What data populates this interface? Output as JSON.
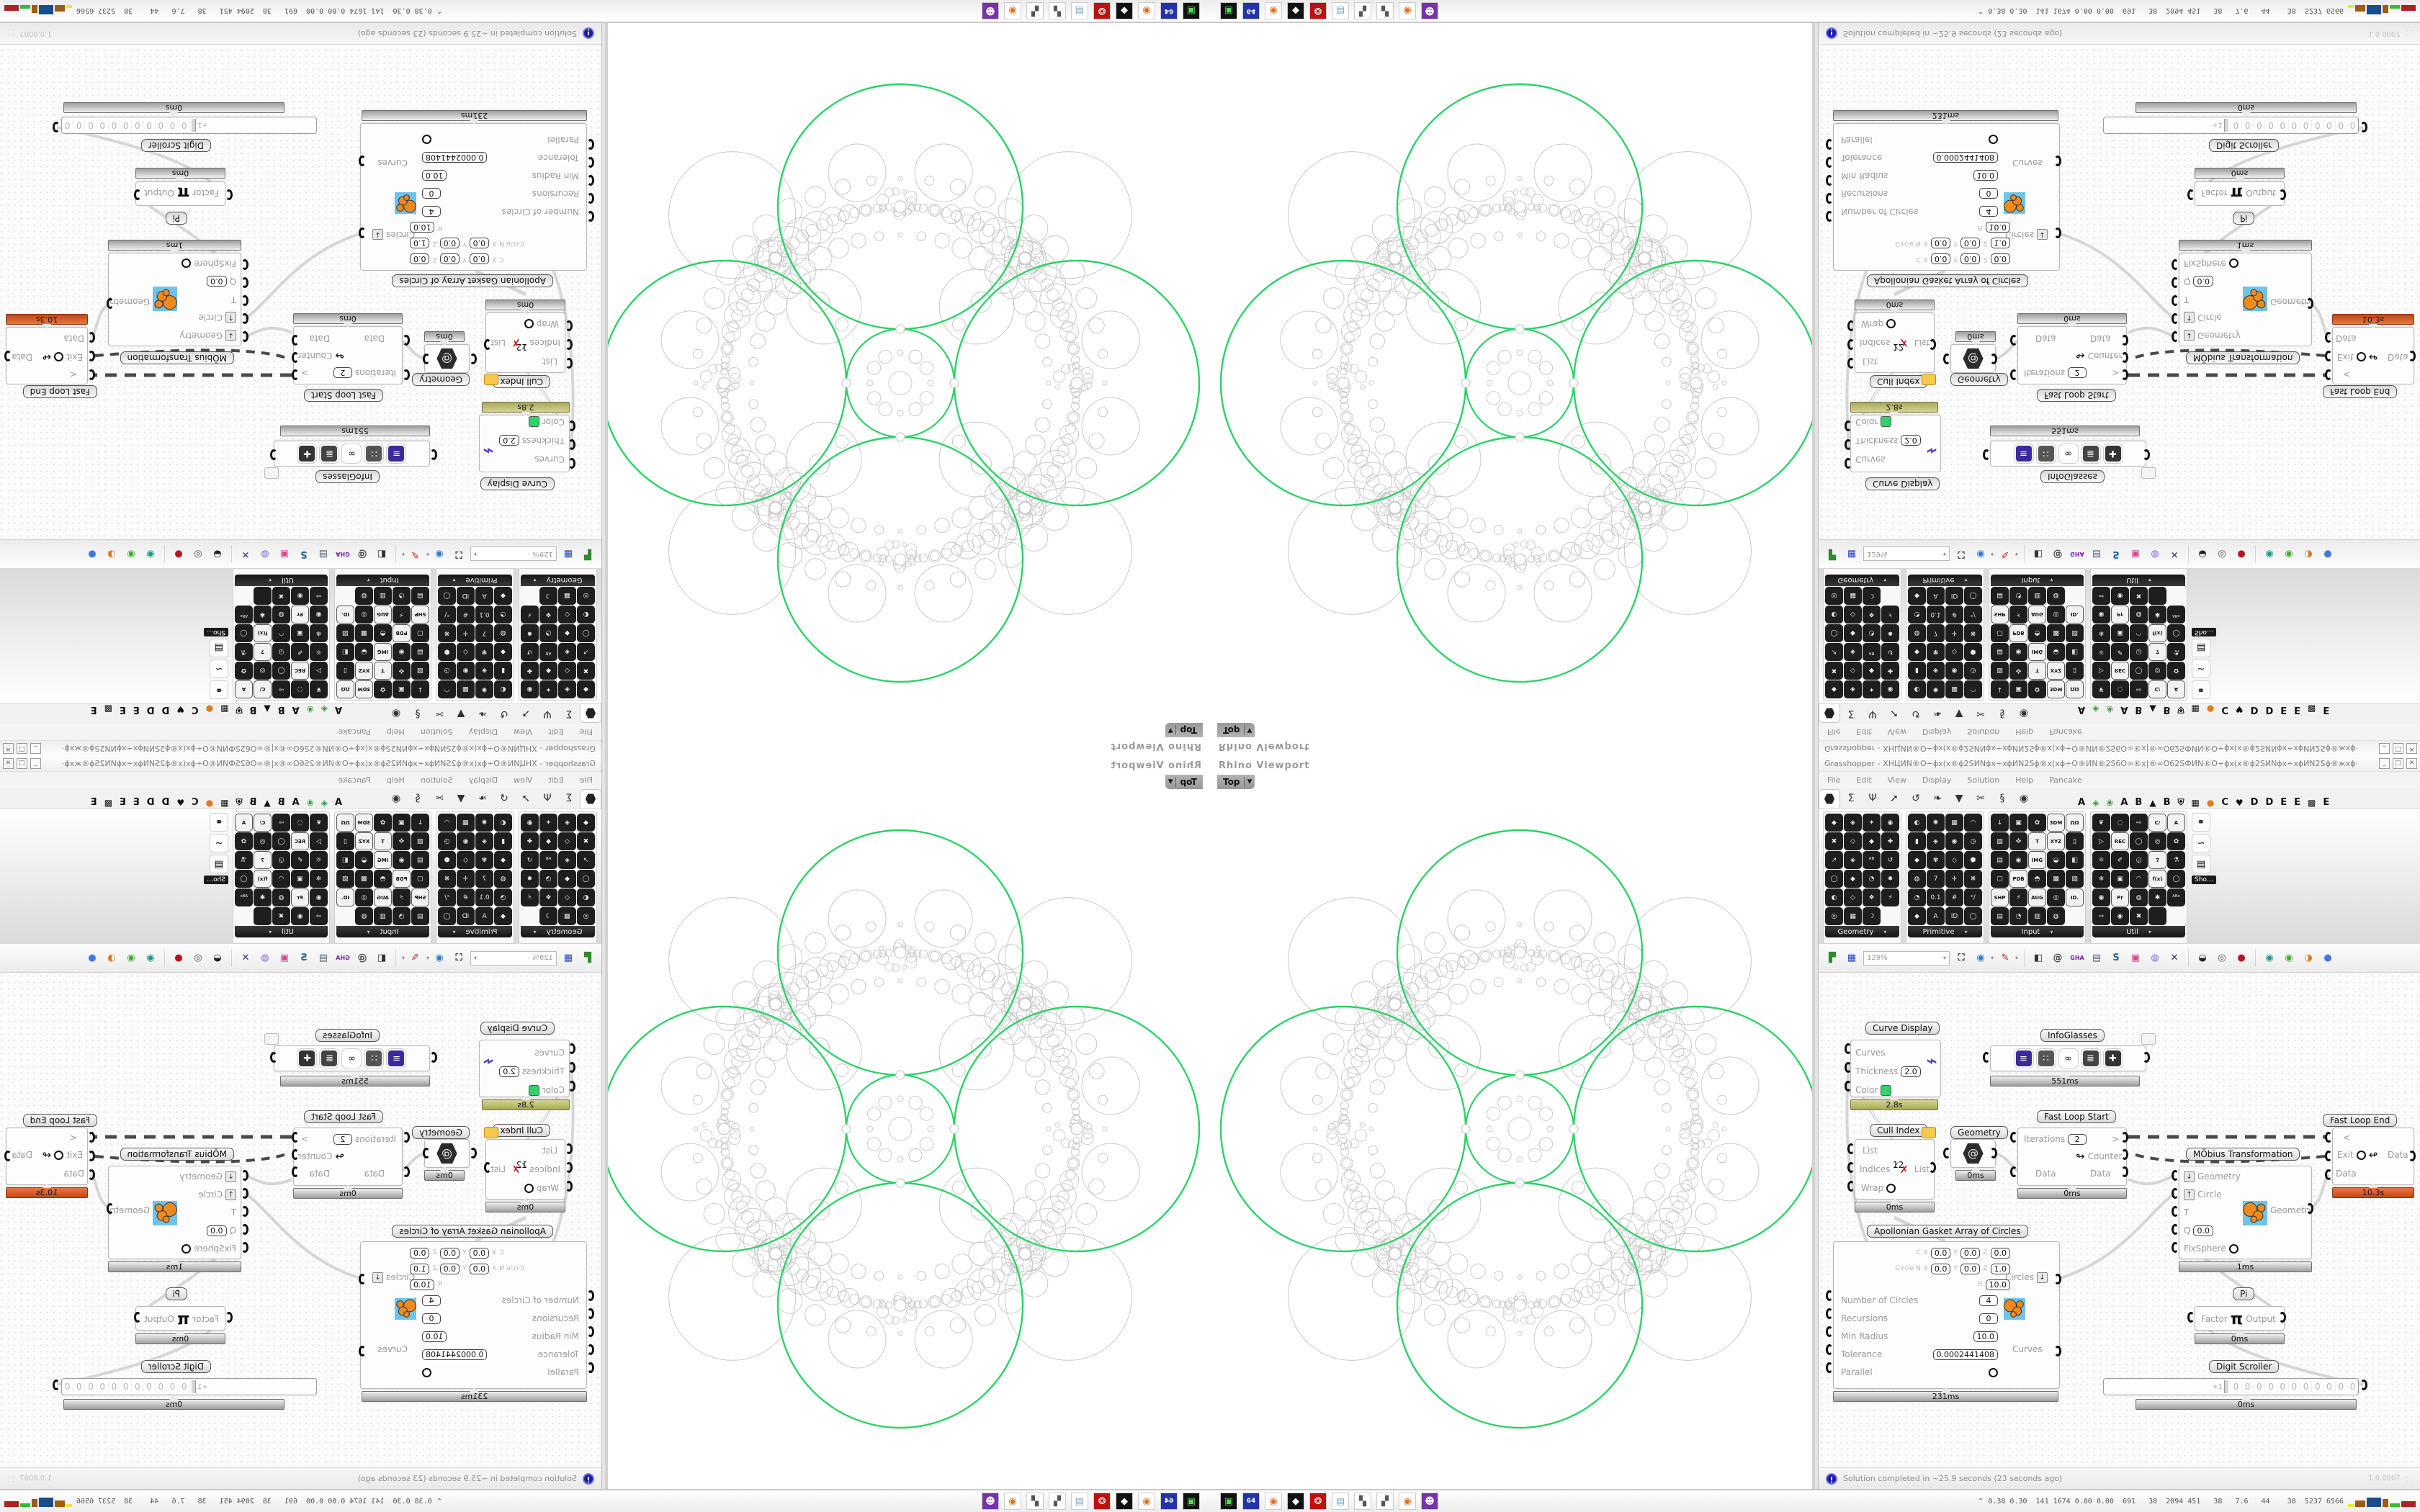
{
  "colors": {
    "gasket_green": "#2bd266",
    "gasket_gray": "#c9c9c9",
    "wire_gray": "#d6d6d6",
    "wire_dashed": "#4a4a4a",
    "timer_red": "#c24718",
    "timer_olive": "#a9a95c",
    "tag_yellow": "#f6c94a",
    "node_green_swatch": "#2fd36a"
  },
  "rhino": {
    "title": "Rhino Viewport",
    "tab": "Top",
    "tab_caret": "▼"
  },
  "gh": {
    "title": "Grasshopper - XHЦИN®O÷ϕх(х®ϕ2SИNϕх÷хϕИN2Sϕ®х(хϕ÷O®ИN®2S6O∞®х|®∞O62SФИN®O÷ϕх(х®ϕ2SИNϕх÷хϕИN2Sϕ®жхϕ÷O®ИN*",
    "window_controls": [
      "_",
      "□",
      "✕"
    ],
    "menu": [
      "File",
      "Edit",
      "View",
      "Display",
      "Solution",
      "Help",
      "Pancake"
    ],
    "main_tabs": [
      "hexagon",
      "Σ",
      "Ψ",
      "➚",
      "↺",
      "❧",
      "▼",
      "✂",
      "§",
      "◉"
    ],
    "letter_tabs": [
      "A",
      "◈",
      "❀",
      "A",
      "B",
      "▲",
      "B",
      "⛨",
      "▦",
      "●",
      "C",
      "♥",
      "D",
      "D",
      "E",
      "E",
      "▩",
      "E"
    ],
    "palette": {
      "groups": [
        {
          "label": "Geometry",
          "cols": 4,
          "glyphs": [
            "◆",
            "◈",
            "✦",
            "◉",
            "✖",
            "◇",
            "◆",
            "✚",
            "↗",
            "◈",
            "ᴬᴮ",
            "↺",
            "◯",
            "◆",
            "◔",
            "✸",
            "◐",
            "◇",
            "❖",
            "⚡",
            "◎",
            "▦",
            "☽"
          ]
        },
        {
          "label": "Primitive",
          "cols": 4,
          "glyphs": [
            "◐",
            "✺",
            "▦",
            "◠",
            "▮",
            "◈",
            "◉",
            "◷",
            "◆",
            "✾",
            "◇",
            "⬢",
            "◍",
            "7",
            "✛",
            "❋",
            "◔",
            "0.1",
            "#",
            "ᶜ/",
            "◆",
            "A",
            "ID",
            "◯"
          ]
        },
        {
          "label": "Input",
          "cols": 5,
          "glyphs": [
            "↓",
            "▣",
            "✿",
            "t:3DM",
            "t:ΩΩ",
            "▨",
            "✜",
            "t:T",
            "t:XYZ",
            "▯",
            "▤",
            "◉",
            "t:IMG",
            "◒",
            "◧",
            "▢",
            "t:PDB",
            "◓",
            "▩",
            "▧",
            "t:SHP",
            "⚡",
            "t:AUG",
            "◎",
            "t:ID.",
            "▤",
            "◔",
            "▥",
            "◍"
          ]
        },
        {
          "label": "Util",
          "cols": 5,
          "glyphs": [
            "❦",
            "◌",
            "⇨",
            "t:C/",
            "t:A",
            "▷",
            "t:REC",
            "◯",
            "◎",
            "✿",
            "⚛",
            "✐",
            "◶",
            "t:7",
            "⚗",
            "❄",
            "▣",
            "◠",
            "t:f(x)",
            "◯",
            "◉",
            "t:Pr",
            "◍",
            "✱",
            "ᴬᴮᶜ",
            "⇨",
            "◉",
            "✖",
            ""
          ]
        }
      ],
      "side_icons": [
        "⚭",
        "∽",
        "▤"
      ],
      "tooltip": "Sho…"
    },
    "toolbar": {
      "zoom": "129%",
      "icons": [
        {
          "name": "open-file-icon",
          "glyph": "▛",
          "color": "#2e8b2e"
        },
        {
          "name": "save-file-icon",
          "glyph": "▦",
          "color": "#2244bb"
        },
        {
          "name": "zoom-extents-icon",
          "glyph": "⛶",
          "color": "#333333"
        },
        {
          "name": "preview-eye-icon",
          "glyph": "◉",
          "color": "#2e7fd4"
        },
        {
          "name": "sketch-pen-icon",
          "glyph": "✎",
          "color": "#c42222"
        },
        {
          "name": "exit-door-icon",
          "glyph": "◧",
          "color": "#333333"
        },
        {
          "name": "mention-icon",
          "glyph": "@",
          "color": "#444444"
        },
        {
          "name": "gha-globe-icon",
          "glyph": "GHA",
          "color": "#7722aa"
        },
        {
          "name": "document-icon",
          "glyph": "▤",
          "color": "#556677"
        },
        {
          "name": "search-icon",
          "glyph": "S",
          "color": "#226699"
        },
        {
          "name": "package-icon",
          "glyph": "▣",
          "color": "#d4488e"
        },
        {
          "name": "balloon-icon",
          "glyph": "◍",
          "color": "#8866dd"
        },
        {
          "name": "wires-icon",
          "glyph": "✕",
          "color": "#223366"
        },
        {
          "name": "camera-icon",
          "glyph": "◒",
          "color": "#222222"
        },
        {
          "name": "rings-icon",
          "glyph": "◎",
          "color": "#555555"
        },
        {
          "name": "red-ball-icon",
          "glyph": "●",
          "color": "#bb1122"
        },
        {
          "name": "teal-pin-icon",
          "glyph": "◉",
          "color": "#1a9a8a"
        },
        {
          "name": "green-pin-icon",
          "glyph": "◉",
          "color": "#44aa33"
        },
        {
          "name": "orange-ball-icon",
          "glyph": "◑",
          "color": "#dd7711"
        },
        {
          "name": "blue-ball-icon",
          "glyph": "●",
          "color": "#4477dd"
        }
      ]
    },
    "status": {
      "text": "Solution completed in ~25.9 seconds (23 seconds ago)",
      "version": "1.0.0007",
      "grip": "⸬"
    },
    "nodes": {
      "curve_display": {
        "title": "Curve Display",
        "timer": "2.8s",
        "timer_style": "olive",
        "inputs": [
          {
            "label": "Curves"
          },
          {
            "label": "Thickness",
            "value": "2.0"
          },
          {
            "label": "Color",
            "swatch": true
          }
        ]
      },
      "infoglasses": {
        "title": "InfoGlasses",
        "timer": "551ms",
        "icons": [
          "ball-menu-icon",
          "grid-icon",
          "glasses-icon",
          "cabinet-icon",
          "puzzle-icon"
        ]
      },
      "fast_loop_start": {
        "title": "Fast Loop Start",
        "timer": "0ms",
        "inputs": [
          {
            "label": "Iterations",
            "value": "2"
          },
          {
            "label": "Data"
          }
        ],
        "outputs": [
          {
            "label": ">"
          },
          {
            "label": "Counter"
          },
          {
            "label": "Data"
          }
        ]
      },
      "cull_index": {
        "title": "Cull Index",
        "timer": "0ms",
        "inputs": [
          {
            "label": "List"
          },
          {
            "label": "Indices"
          },
          {
            "label": "Wrap",
            "toggle": true
          }
        ],
        "outputs": [
          {
            "label": "List"
          }
        ]
      },
      "geometry": {
        "title": "Geometry",
        "timer": "0ms"
      },
      "mobius": {
        "title": "MÖbius Transformation",
        "timer": "1ms",
        "inputs": [
          {
            "label": "Geometry",
            "badge": "↓"
          },
          {
            "label": "Circle",
            "badge": "↑"
          },
          {
            "label": "T"
          },
          {
            "label": "Q",
            "value": "0.0"
          },
          {
            "label": "FixSphere",
            "toggle": true
          }
        ],
        "outputs": [
          {
            "label": "Geometry"
          }
        ]
      },
      "fast_loop_end": {
        "title": "Fast Loop End",
        "timer": "10.3s",
        "timer_style": "red",
        "inputs": [
          {
            "label": "<"
          },
          {
            "label": "Exit",
            "toggle": true
          },
          {
            "label": "Data"
          }
        ],
        "outputs": [
          {
            "label": "Data"
          }
        ]
      },
      "apollonian": {
        "title": "Apollonian Gasket Array of Circles",
        "timer": "231ms",
        "circle_rows": [
          {
            "prefix": "C",
            "fields": [
              {
                "k": "X",
                "v": "0.0"
              },
              {
                "k": "Y",
                "v": "0.0"
              },
              {
                "k": "Z",
                "v": "0.0"
              }
            ]
          },
          {
            "prefix": "Circle  N",
            "fields": [
              {
                "k": "X",
                "v": "0.0"
              },
              {
                "k": "Y",
                "v": "0.0"
              },
              {
                "k": "Z",
                "v": "1.0"
              }
            ]
          },
          {
            "prefix": "R",
            "fields": [
              {
                "k": "",
                "v": "10.0"
              }
            ]
          }
        ],
        "inputs": [
          {
            "label": "Number of Circles",
            "value": "4"
          },
          {
            "label": "Recursions",
            "value": "0"
          },
          {
            "label": "Min Radius",
            "value": "10.0"
          },
          {
            "label": "Tolerance",
            "value": "0.0002441408"
          },
          {
            "label": "Parallel",
            "toggle": true
          }
        ],
        "outputs": [
          {
            "label": "Circles",
            "badge": "↓"
          },
          {
            "label": "Curves"
          }
        ]
      },
      "pi": {
        "title": "Pi",
        "timer": "0ms",
        "glyph": "π",
        "inputs": [
          {
            "label": "Factor"
          }
        ],
        "outputs": [
          {
            "label": "Output"
          }
        ]
      },
      "digit_scroller": {
        "title": "Digit Scroller",
        "timer": "0ms",
        "plus": "+1",
        "digits": [
          "0",
          "0",
          "0",
          "0",
          "0",
          "0",
          "0",
          "0",
          "0",
          "0",
          "0"
        ]
      }
    }
  },
  "taskbar": {
    "launcher_icons": [
      {
        "name": "gameboy-icon",
        "glyph": "▣",
        "color": "#2a7a2a"
      },
      {
        "name": "floppy64-icon",
        "glyph": "64",
        "color": "#2233aa"
      },
      {
        "name": "firefox-icon",
        "glyph": "◉",
        "color": "#e07020"
      },
      {
        "name": "rhino-icon",
        "glyph": "◆",
        "color": "#111111"
      },
      {
        "name": "gear-red-icon",
        "glyph": "❂",
        "color": "#bb1111"
      },
      {
        "name": "notepad-icon",
        "glyph": "▤",
        "color": "#7aa7c7"
      },
      {
        "name": "maze-icon",
        "glyph": "▚",
        "color": "#555555"
      },
      {
        "name": "maze2-icon",
        "glyph": "▞",
        "color": "#555555"
      },
      {
        "name": "firefox2-icon",
        "glyph": "◉",
        "color": "#e07020"
      },
      {
        "name": "wilber-icon",
        "glyph": "☻",
        "color": "#7733aa"
      }
    ],
    "stats_arrow": "⌃",
    "stats": "0.38 0.30  141 1674 0.00 0.00  691   38  2094 451   38   7.6   44    38  5237 6566",
    "spark_colors": [
      "#e8e832",
      "#a05a14",
      "#1a4e8a",
      "#a05a14",
      "#33bb33",
      "#aa2222"
    ]
  }
}
